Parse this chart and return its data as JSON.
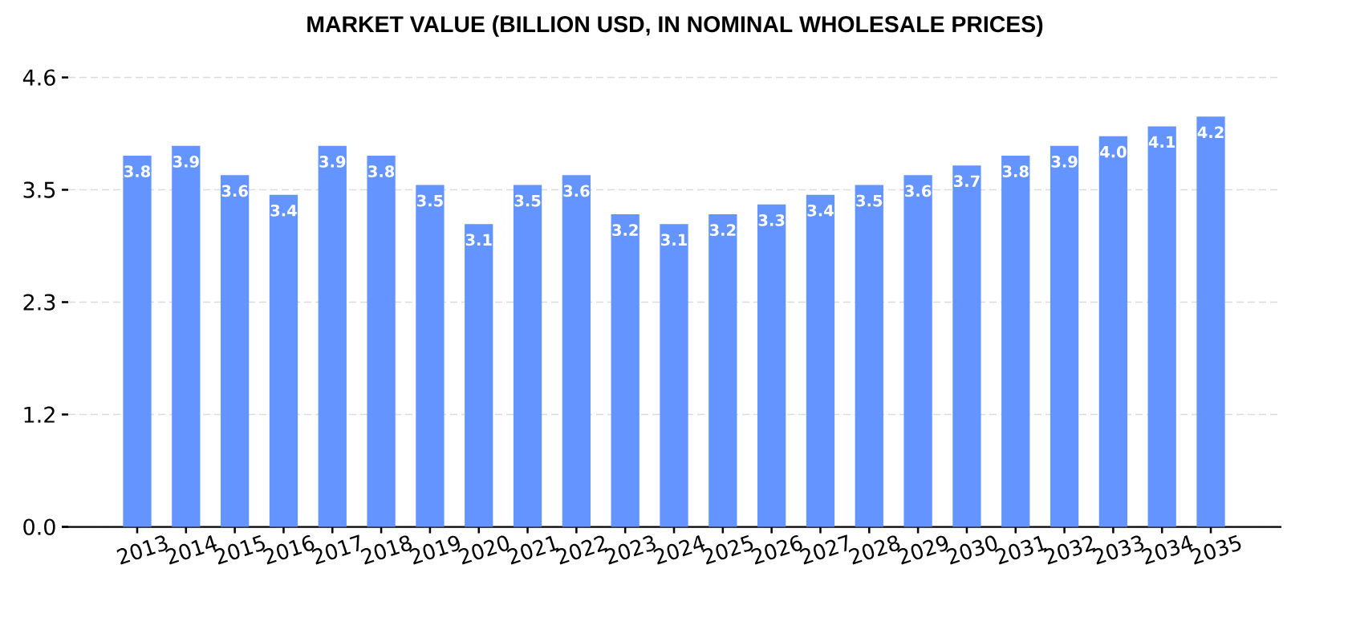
{
  "chart_data": {
    "type": "bar",
    "title": "MARKET VALUE (BILLION USD, IN NOMINAL WHOLESALE PRICES)",
    "categories": [
      "2013",
      "2014",
      "2015",
      "2016",
      "2017",
      "2018",
      "2019",
      "2020",
      "2021",
      "2022",
      "2023",
      "2024",
      "2025",
      "2026",
      "2027",
      "2028",
      "2029",
      "2030",
      "2031",
      "2032",
      "2033",
      "2034",
      "2035"
    ],
    "values": [
      3.8,
      3.9,
      3.6,
      3.4,
      3.9,
      3.8,
      3.5,
      3.1,
      3.5,
      3.6,
      3.2,
      3.1,
      3.2,
      3.3,
      3.4,
      3.5,
      3.6,
      3.7,
      3.8,
      3.9,
      4.0,
      4.1,
      4.2
    ],
    "value_labels": [
      "3.8",
      "3.9",
      "3.6",
      "3.4",
      "3.9",
      "3.8",
      "3.5",
      "3.1",
      "3.5",
      "3.6",
      "3.2",
      "3.1",
      "3.2",
      "3.3",
      "3.4",
      "3.5",
      "3.6",
      "3.7",
      "3.8",
      "3.9",
      "4.0",
      "4.1",
      "4.2"
    ],
    "color": "#6394ff",
    "ylim": [
      0,
      4.6
    ],
    "yticks": [
      {
        "value": 0,
        "label": "0.0"
      },
      {
        "value": 1.15,
        "label": "1.2"
      },
      {
        "value": 2.3,
        "label": "2.3"
      },
      {
        "value": 3.45,
        "label": "3.5"
      },
      {
        "value": 4.6,
        "label": "4.6"
      }
    ],
    "grid": "y"
  }
}
